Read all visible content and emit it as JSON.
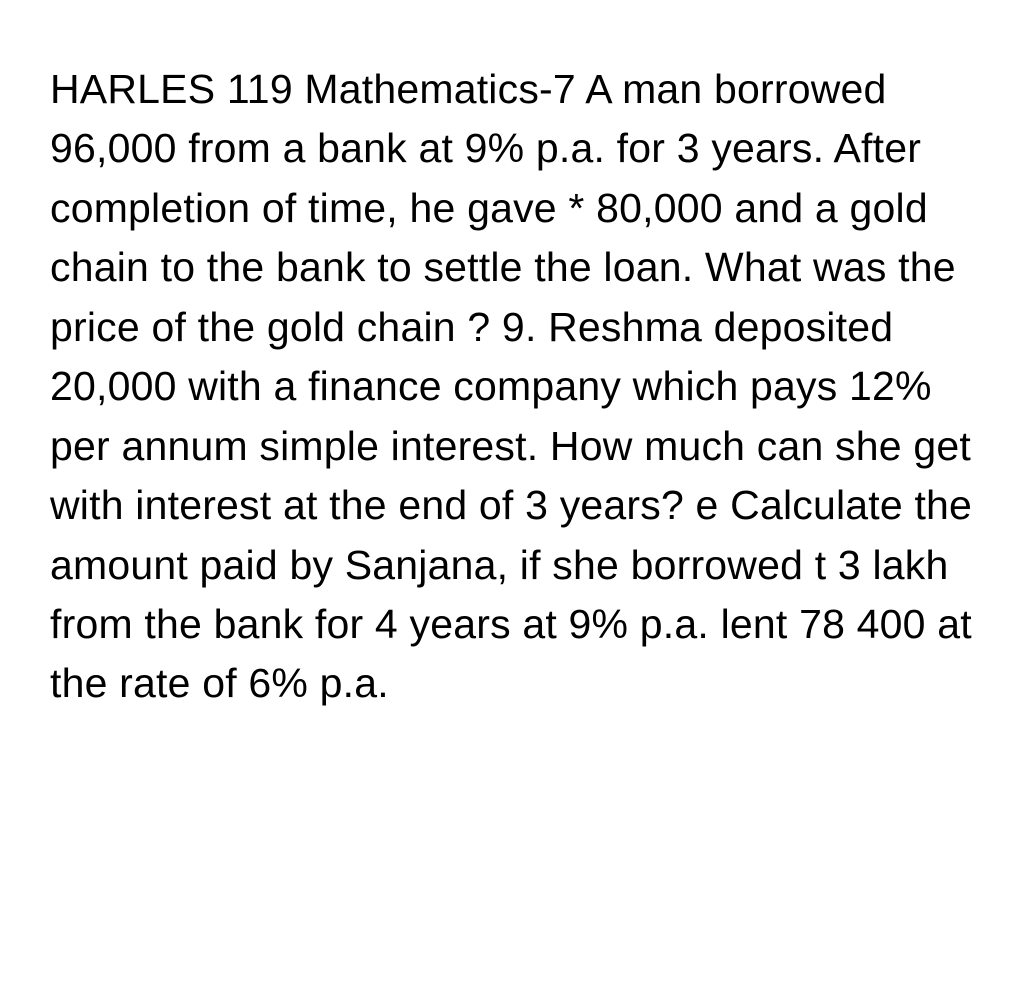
{
  "document": {
    "text": "HARLES 119 Mathematics-7 A man borrowed 96,000 from a bank at 9% p.a. for 3 years. After completion of time, he gave * 80,000 and a gold chain to the bank to settle the loan. What was the price of the gold chain ? 9. Reshma deposited 20,000 with a finance company which pays 12% per annum simple interest. How much can she get with interest at the end of 3 years? e Calculate the amount paid by Sanjana, if she borrowed t 3 lakh from the bank for 4 years at 9% p.a. lent 78 400 at the rate of 6% p.a.",
    "font_size": 41,
    "line_height": 1.45,
    "text_color": "#000000",
    "background_color": "#ffffff",
    "font_family": "Arial, Helvetica, sans-serif"
  }
}
